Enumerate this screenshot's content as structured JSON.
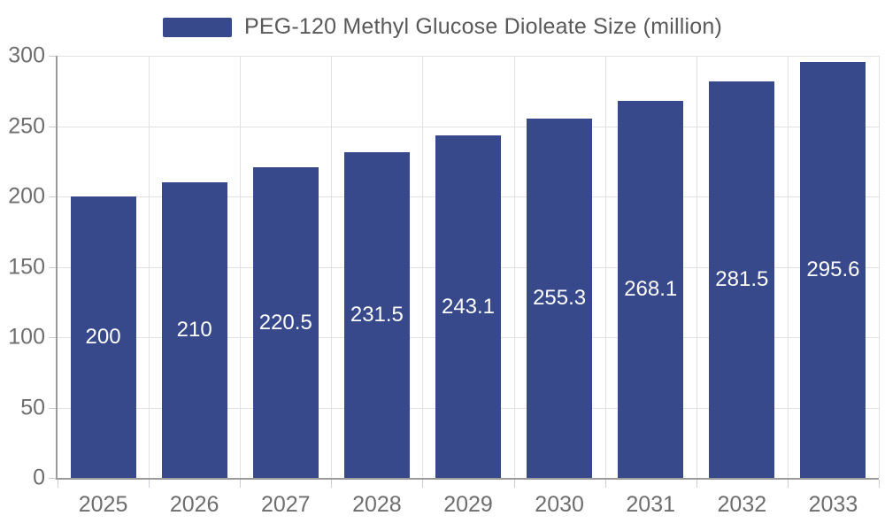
{
  "chart_data": {
    "type": "bar",
    "title": "",
    "legend": [
      "PEG-120 Methyl Glucose Dioleate Size (million)"
    ],
    "legend_position": "top",
    "categories": [
      "2025",
      "2026",
      "2027",
      "2028",
      "2029",
      "2030",
      "2031",
      "2032",
      "2033"
    ],
    "values": [
      200,
      210,
      220.5,
      231.5,
      243.1,
      255.3,
      268.1,
      281.5,
      295.6
    ],
    "value_labels": [
      "200",
      "210",
      "220.5",
      "231.5",
      "243.1",
      "255.3",
      "268.1",
      "281.5",
      "295.6"
    ],
    "xlabel": "",
    "ylabel": "",
    "ylim": [
      0,
      300
    ],
    "ytick_step": 50,
    "ytick_labels": [
      "0",
      "50",
      "100",
      "150",
      "200",
      "250",
      "300"
    ],
    "grid": true,
    "colors": {
      "bar": "#37498a",
      "bar_value_text": "#ffffff",
      "legend_text": "#595959",
      "axis_label": "#6e6e6e",
      "axis_line": "#9b9b9b",
      "gridline": "#e2e2e2"
    }
  }
}
